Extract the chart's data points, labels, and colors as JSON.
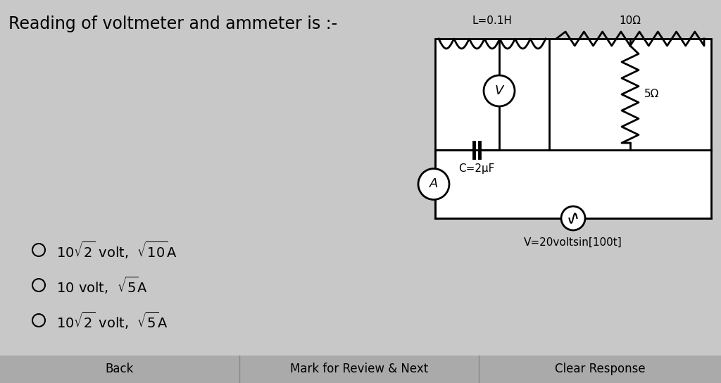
{
  "title": "Reading of voltmeter and ammeter is :-",
  "background_color": "#c8c8c8",
  "options": [
    [
      "10",
      "2",
      " volt,  ",
      "10",
      "A"
    ],
    [
      "10 volt,  ",
      "5",
      "A"
    ],
    [
      "10",
      "2",
      " volt,  ",
      "5",
      "A"
    ]
  ],
  "circuit": {
    "inductor_label": "L=0.1H",
    "resistor1_label": "10Ω",
    "resistor2_label": "5Ω",
    "capacitor_label": "C=2μF",
    "source_label": "V=20voltsin[100t]",
    "voltmeter_label": "V",
    "ammeter_label": "A"
  },
  "bottom_bar": {
    "labels": [
      "Back",
      "Mark for Review & Next",
      "Clear Response"
    ]
  },
  "font_size_title": 17,
  "font_size_options": 14,
  "font_size_circuit": 11
}
